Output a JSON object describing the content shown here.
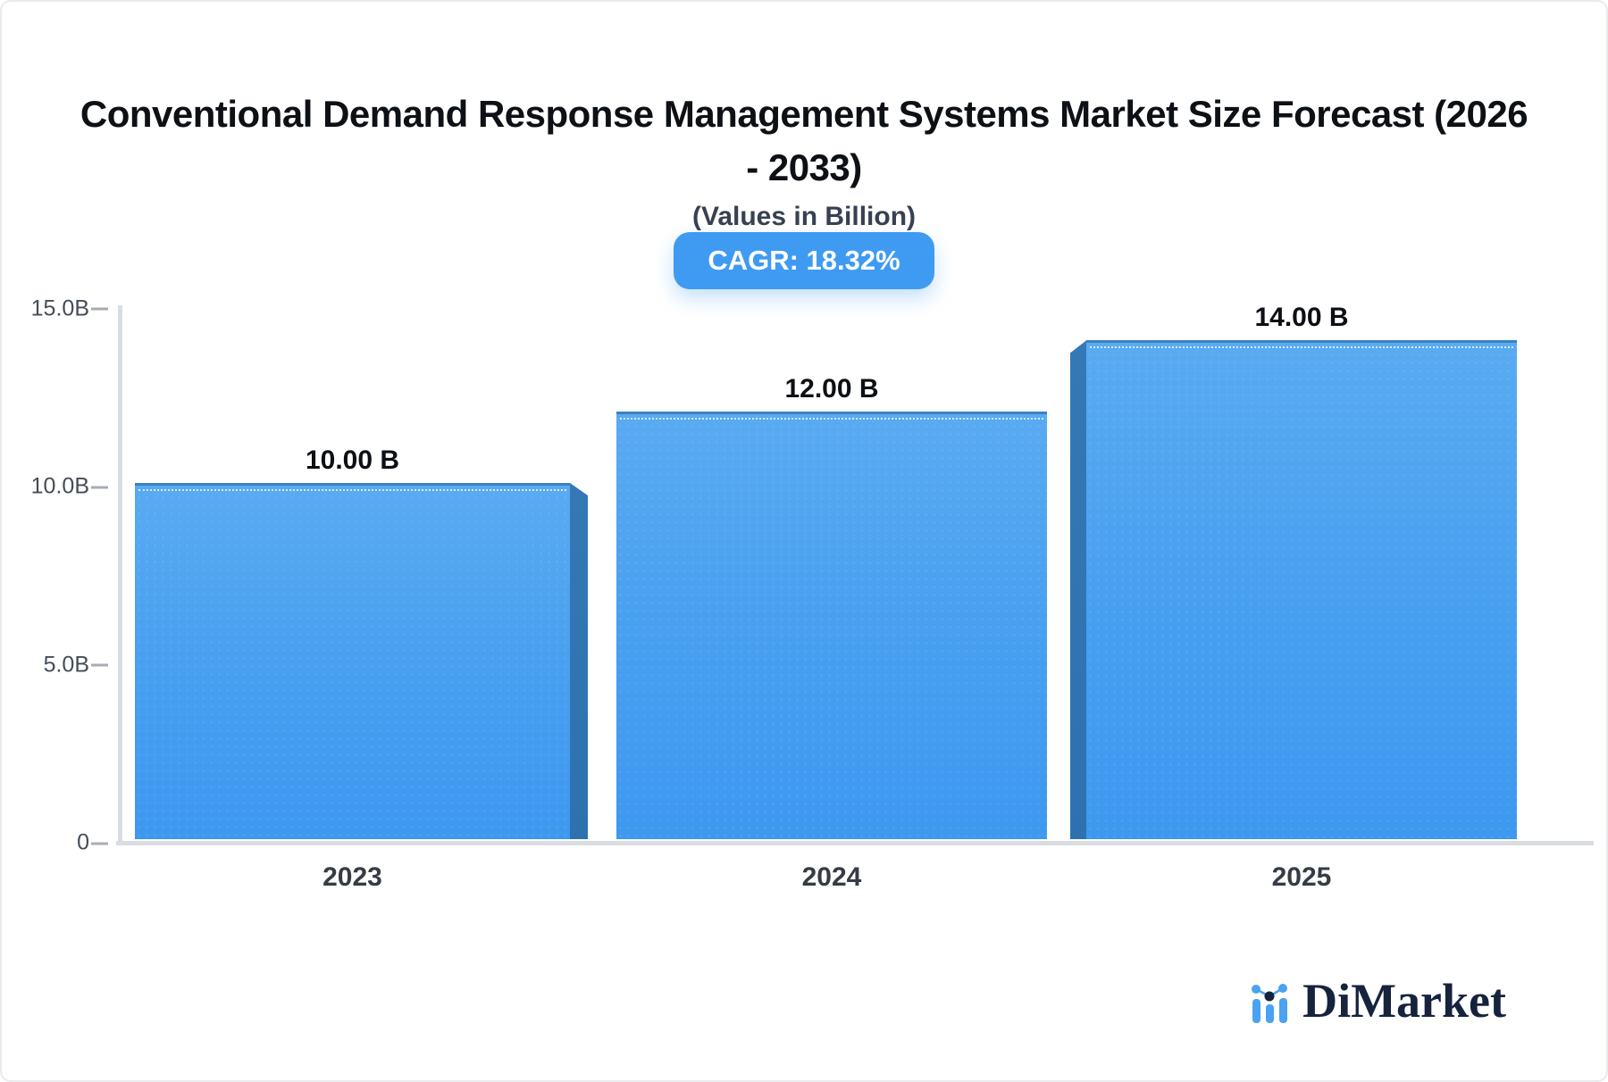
{
  "header": {
    "title_line1": "Conventional Demand Response Management Systems Market Size Forecast (2026",
    "title_line2": "- 2033)",
    "subtitle": "(Values in Billion)",
    "cagr_badge": "CAGR: 18.32%"
  },
  "chart_data": {
    "type": "bar",
    "title": "Conventional Demand Response Management Systems Market Size Forecast (2026 - 2033)",
    "subtitle": "(Values in Billion)",
    "cagr": "18.32%",
    "categories": [
      "2023",
      "2024",
      "2025"
    ],
    "values": [
      10,
      12,
      14
    ],
    "bar_labels": [
      "10.00 B",
      "12.00 B",
      "14.00 B"
    ],
    "unit": "Billion USD",
    "xlabel": "",
    "ylabel": "",
    "ylim": [
      0,
      15
    ],
    "yticks": [
      {
        "value": 0,
        "label": "0"
      },
      {
        "value": 5,
        "label": "5.0B"
      },
      {
        "value": 10,
        "label": "10.0B"
      },
      {
        "value": 15,
        "label": "15.0B"
      }
    ],
    "grid": false,
    "legend": false,
    "bar_color": "#479ff0",
    "bar_side_color": "#2d72af",
    "axis_line_color": "#d9dde2"
  },
  "branding": {
    "name": "DiMarket"
  },
  "colors": {
    "accent_blue": "#3f9bf2",
    "navy": "#16233d",
    "title_text": "#0d1014",
    "subtitle_text": "#374151"
  }
}
